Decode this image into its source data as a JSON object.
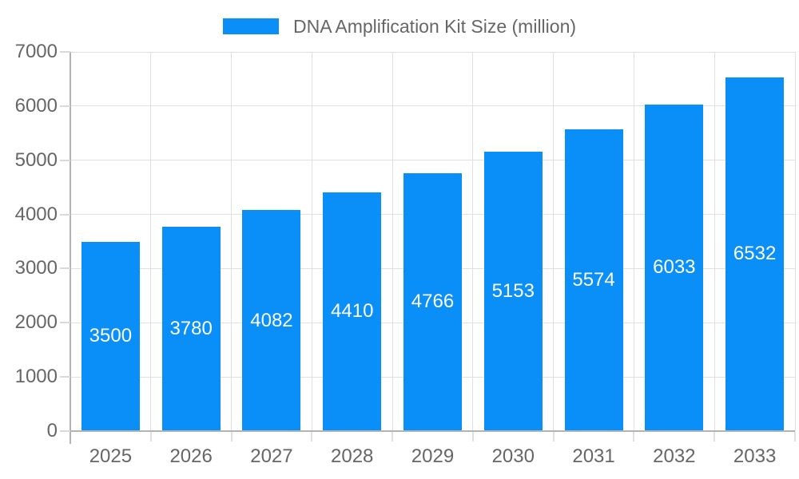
{
  "legend": {
    "label": "DNA Amplification Kit Size (million)"
  },
  "colors": {
    "bar": "#0a8ef8",
    "bar_label_text": "#ffffff",
    "axis_line": "#b3b3b3",
    "gridline": "#e0e0e0",
    "axis_text": "#666666",
    "background": "#ffffff"
  },
  "chart_data": {
    "type": "bar",
    "title": "DNA Amplification Kit Size (million)",
    "categories": [
      "2025",
      "2026",
      "2027",
      "2028",
      "2029",
      "2030",
      "2031",
      "2032",
      "2033"
    ],
    "series": [
      {
        "name": "DNA Amplification Kit Size (million)",
        "values": [
          3500,
          3780,
          4082,
          4410,
          4766,
          5153,
          5574,
          6033,
          6532
        ]
      }
    ],
    "xlabel": "",
    "ylabel": "",
    "ylim": [
      0,
      7000
    ],
    "yticks": [
      0,
      1000,
      2000,
      3000,
      4000,
      5000,
      6000,
      7000
    ],
    "grid": true,
    "legend_position": "top-center",
    "value_labels_position": "inside-middle"
  }
}
